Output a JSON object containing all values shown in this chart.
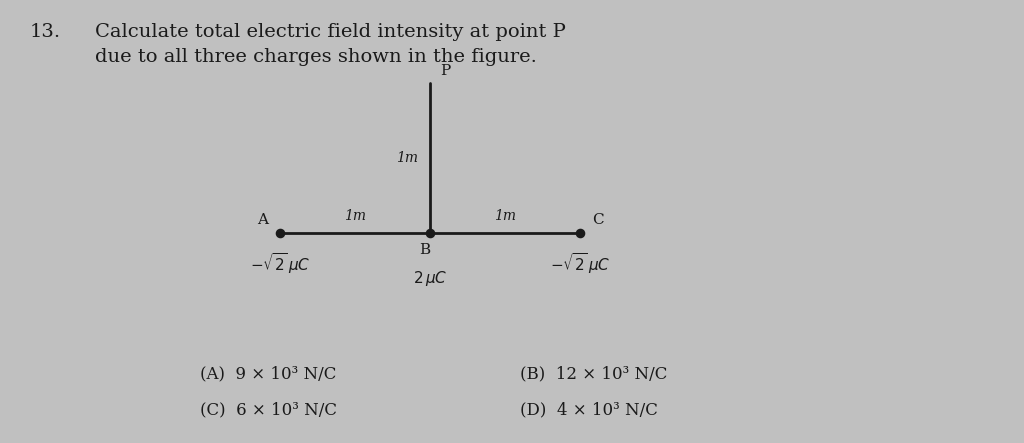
{
  "bg_color": "#c0c0c0",
  "title_number": "13.",
  "title_text1": "Calculate total electric field intensity at point P",
  "title_text2": "due to all three charges shown in the figure.",
  "point_A": [
    -1,
    0
  ],
  "point_B": [
    0,
    0
  ],
  "point_C": [
    1,
    0
  ],
  "point_P": [
    0,
    1
  ],
  "label_A": "A",
  "label_B": "B",
  "label_C": "C",
  "label_P": "P",
  "charge_A": "$-\\sqrt{2}\\,\\mu C$",
  "charge_B": "$2\\,\\mu C$",
  "charge_C": "$-\\sqrt{2}\\,\\mu C$",
  "dist_AB": "1m",
  "dist_BC": "1m",
  "dist_BP": "1m",
  "opt_A": "(A)  9 × 10³ N/C",
  "opt_B": "(B)  12 × 10³ N/C",
  "opt_C": "(C)  6 × 10³ N/C",
  "opt_D": "(D)  4 × 10³ N/C",
  "line_color": "#1a1a1a",
  "text_color": "#1a1a1a",
  "dot_color": "#1a1a1a"
}
